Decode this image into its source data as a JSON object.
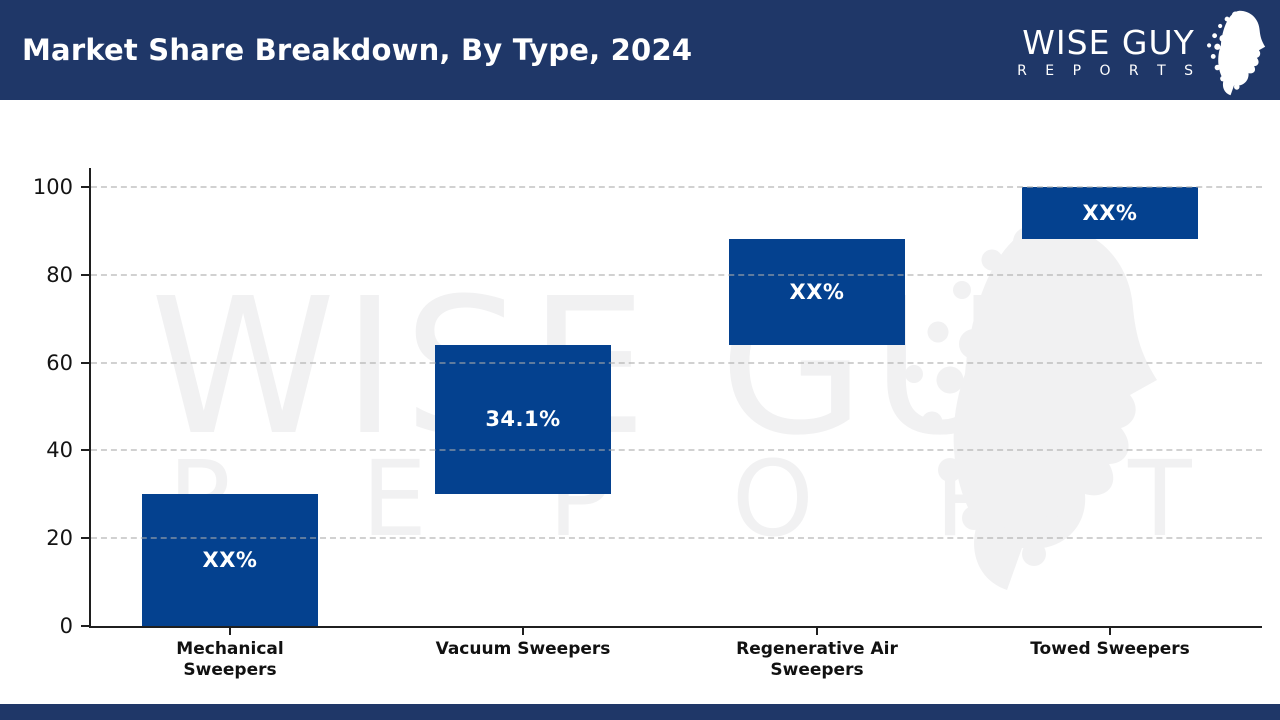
{
  "header": {
    "title": "Market Share Breakdown, By Type, 2024",
    "logo": {
      "line1": "WISE GUY",
      "line2": "R E P O R T S"
    }
  },
  "watermark": {
    "line1": "WISE GUY",
    "line2": "R E P O R T S"
  },
  "colors": {
    "header_bg": "#1f3768",
    "footer_bg": "#1f3768",
    "bar": "#04418f",
    "bar_label": "#ffffff",
    "axis": "#1f1f1f",
    "watermark": "#f1f1f2"
  },
  "chart_data": {
    "type": "bar",
    "subtype": "floating_segment_waterfall",
    "title": "Market Share Breakdown, By Type, 2024",
    "categories": [
      "Mechanical Sweepers",
      "Vacuum Sweepers",
      "Regenerative Air Sweepers",
      "Towed Sweepers"
    ],
    "category_labels": [
      "Mechanical\nSweepers",
      "Vacuum Sweepers",
      "Regenerative Air\nSweepers",
      "Towed Sweepers"
    ],
    "series": [
      {
        "name": "Market share (%)",
        "segments": [
          {
            "category": "Mechanical Sweepers",
            "start": 0,
            "end": 30,
            "label": "XX%"
          },
          {
            "category": "Vacuum Sweepers",
            "start": 30,
            "end": 64.1,
            "label": "34.1%"
          },
          {
            "category": "Regenerative Air Sweepers",
            "start": 64.1,
            "end": 88.2,
            "label": "XX%"
          },
          {
            "category": "Towed Sweepers",
            "start": 88.2,
            "end": 100,
            "label": "XX%"
          }
        ]
      }
    ],
    "ylim": [
      0,
      100
    ],
    "yticks": [
      0,
      20,
      40,
      60,
      80,
      100
    ],
    "xlabel": "",
    "ylabel": "",
    "grid": "horizontal-dashed",
    "legend": "none"
  }
}
